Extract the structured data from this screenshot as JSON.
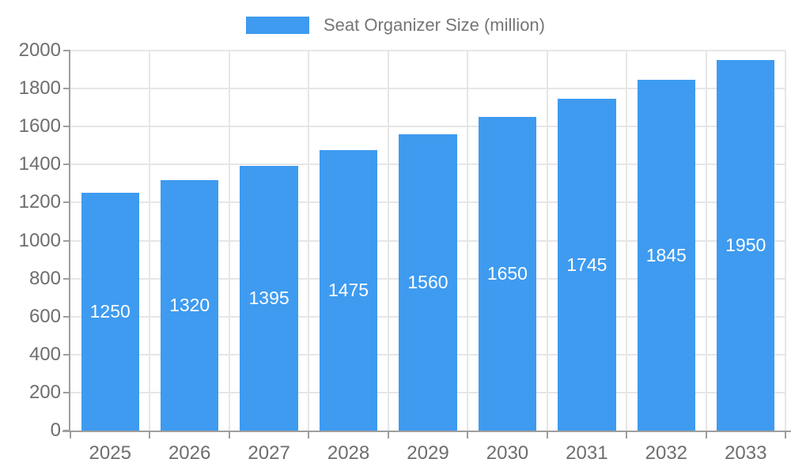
{
  "chart_data": {
    "type": "bar",
    "title": "",
    "categories": [
      "2025",
      "2026",
      "2027",
      "2028",
      "2029",
      "2030",
      "2031",
      "2032",
      "2033"
    ],
    "series": [
      {
        "name": "Seat Organizer Size (million)",
        "values": [
          1250,
          1320,
          1395,
          1475,
          1560,
          1650,
          1745,
          1845,
          1950
        ]
      }
    ],
    "value_labels": [
      1250,
      1320,
      1395,
      1475,
      1560,
      1650,
      1745,
      1845,
      1950
    ],
    "xlabel": "",
    "ylabel": "",
    "ylim": [
      0,
      2000
    ],
    "ytick_step": 200,
    "grid": true,
    "legend_position": "top",
    "colors": {
      "bar": "#3E9BF0",
      "grid": "#e6e6e6",
      "axis": "#9e9e9e",
      "tick_text": "#6e6e6e",
      "legend_text": "#757575",
      "value_label": "#ffffff",
      "background": "#ffffff"
    }
  }
}
